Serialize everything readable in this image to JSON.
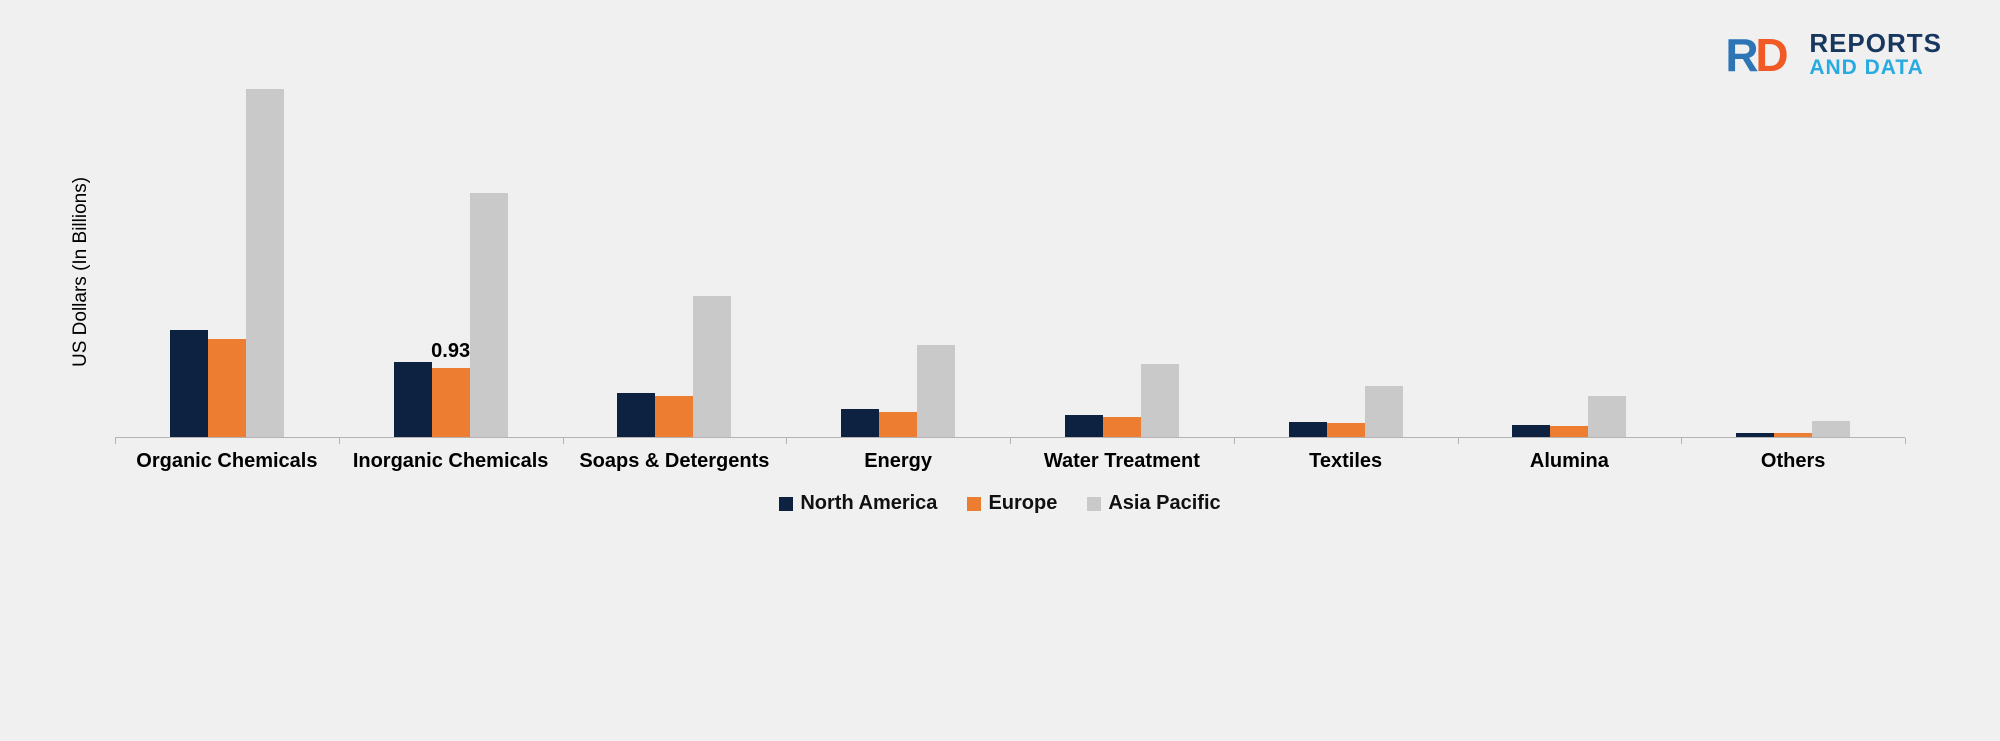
{
  "logo": {
    "icon_r": "R",
    "icon_d": "D",
    "reports": "REPORTS",
    "and_data": "AND DATA"
  },
  "chart_data": {
    "type": "bar",
    "title": "",
    "xlabel": "",
    "ylabel": "US Dollars (In Billions)",
    "ylim": [
      0,
      5
    ],
    "grid": false,
    "legend_position": "bottom",
    "categories": [
      "Organic Chemicals",
      "Inorganic Chemicals",
      "Soaps & Detergents",
      "Energy",
      "Water Treatment",
      "Textiles",
      "Alumina",
      "Others"
    ],
    "series": [
      {
        "name": "North America",
        "color": "#0d2240",
        "values": [
          1.45,
          1.02,
          0.59,
          0.38,
          0.3,
          0.21,
          0.16,
          0.06
        ]
      },
      {
        "name": "Europe",
        "color": "#ed7d31",
        "values": [
          1.33,
          0.93,
          0.55,
          0.34,
          0.27,
          0.19,
          0.15,
          0.05
        ]
      },
      {
        "name": "Asia Pacific",
        "color": "#c9c9c9",
        "values": [
          4.7,
          3.3,
          1.9,
          1.24,
          0.99,
          0.69,
          0.56,
          0.22
        ]
      }
    ],
    "annotations": [
      {
        "series": "Europe",
        "category": "Inorganic Chemicals",
        "label": "0.93"
      }
    ]
  },
  "colors": {
    "background": "#f0f0f0",
    "axis": "#b4b4b4"
  }
}
